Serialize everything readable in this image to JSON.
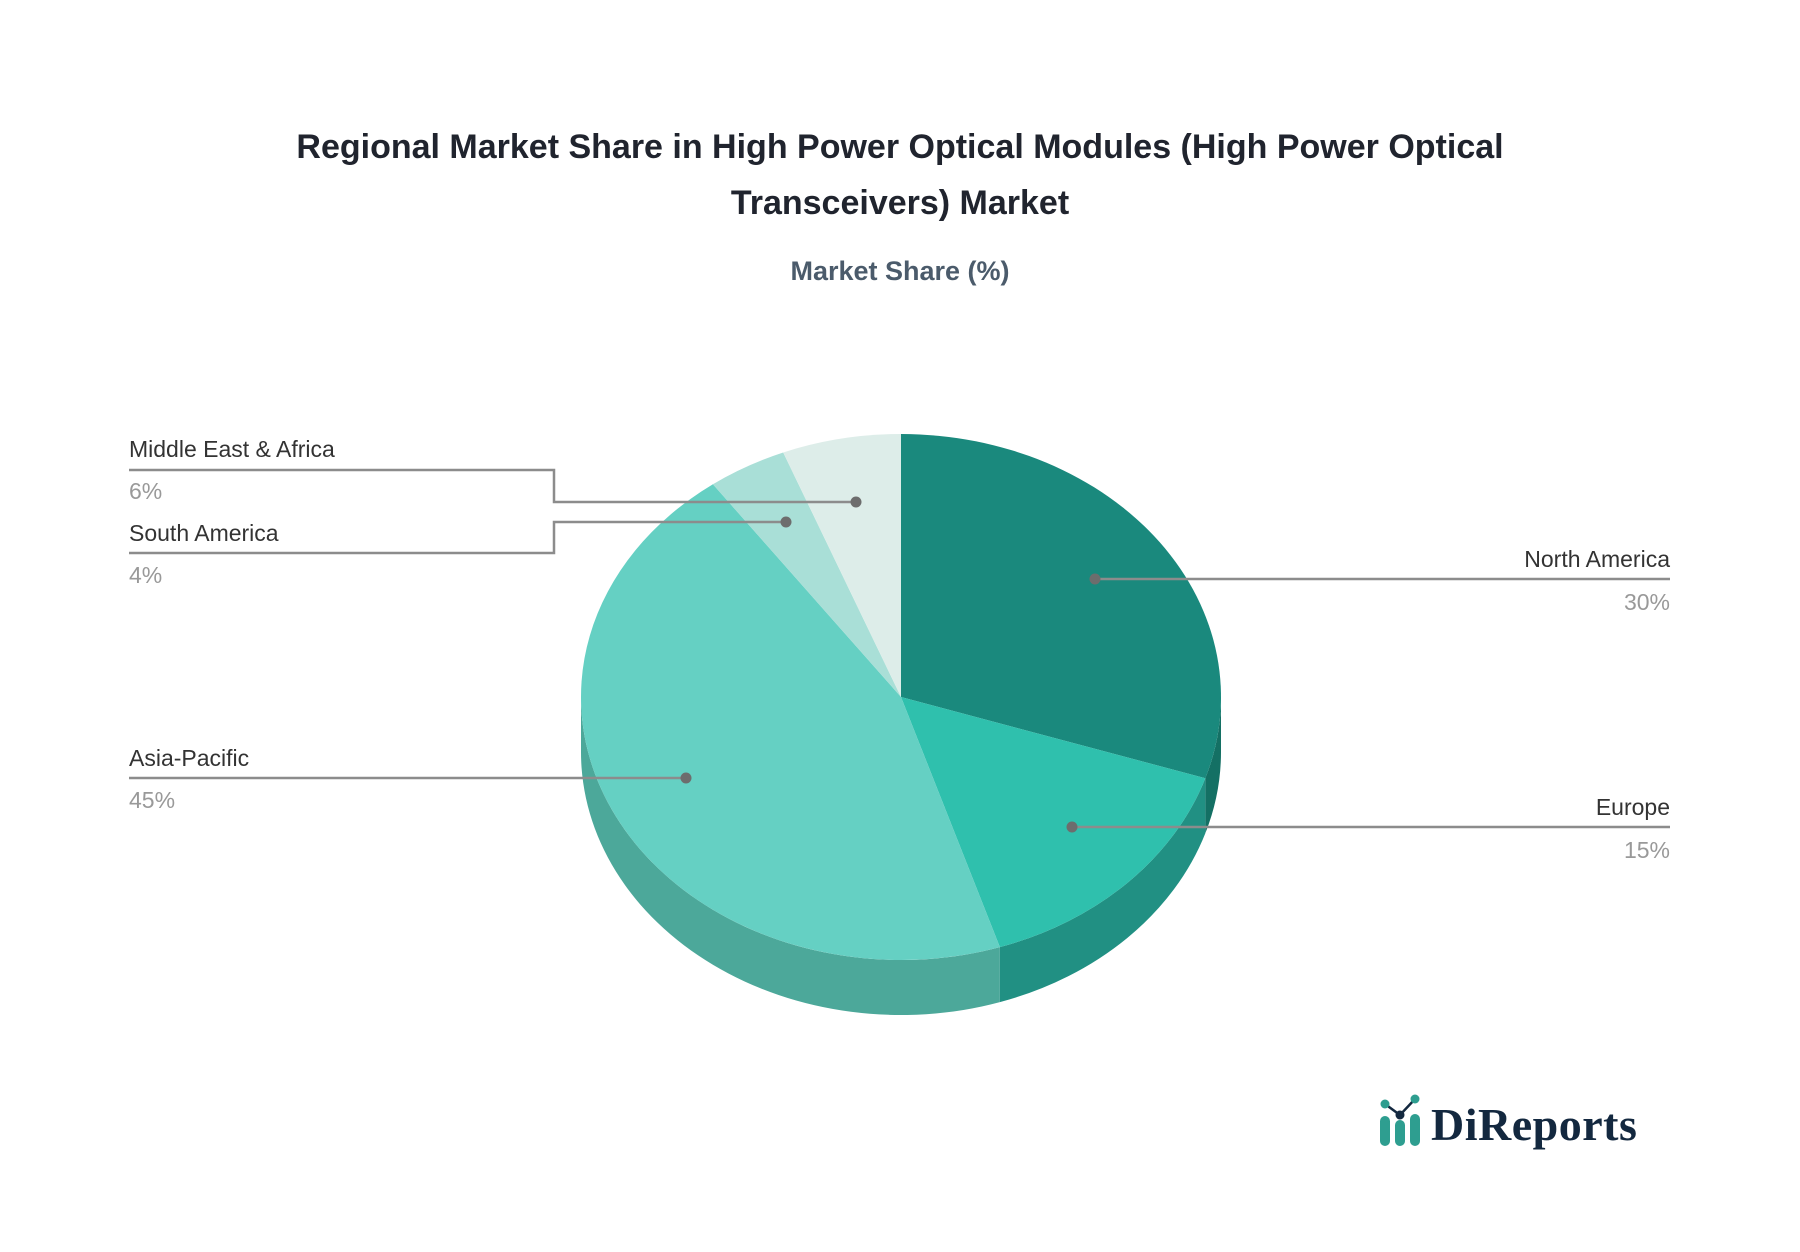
{
  "page": {
    "background": "#ffffff"
  },
  "header": {
    "title": "Regional Market Share in High Power Optical Modules (High Power Optical Transceivers) Market",
    "subtitle": "Market Share (%)"
  },
  "chart_data": {
    "type": "pie",
    "style": "3d",
    "title": "Regional Market Share in High Power Optical Modules (High Power Optical Transceivers) Market",
    "subtitle": "Market Share (%)",
    "units": "%",
    "start_angle": "top",
    "direction": "clockwise",
    "total": 100,
    "legend_position": "callout-labels",
    "slices": [
      {
        "label": "North America",
        "value": 30,
        "pct_text": "30%",
        "color": "#1a897d",
        "side_color": "#147064",
        "label_side": "right"
      },
      {
        "label": "Europe",
        "value": 15,
        "pct_text": "15%",
        "color": "#2fc0ad",
        "side_color": "#219083",
        "label_side": "right"
      },
      {
        "label": "Asia-Pacific",
        "value": 45,
        "pct_text": "45%",
        "color": "#65d0c3",
        "side_color": "#4ca89a",
        "label_side": "left"
      },
      {
        "label": "South America",
        "value": 4,
        "pct_text": "4%",
        "color": "#a9dfd7",
        "side_color": "#8fc4bb",
        "label_side": "left"
      },
      {
        "label": "Middle East & Africa",
        "value": 6,
        "pct_text": "6%",
        "color": "#ddede9",
        "side_color": "#bed3ce",
        "label_side": "left"
      }
    ],
    "callout_line_color": "#8c8c8c",
    "callout_dot_color": "#6d6d6d",
    "label_text_color": "#333333",
    "pct_text_color": "#999999"
  },
  "branding": {
    "logo_text": "DiReports",
    "logo_text_color": "#13283f",
    "logo_mark_color": "#2e9e90"
  }
}
